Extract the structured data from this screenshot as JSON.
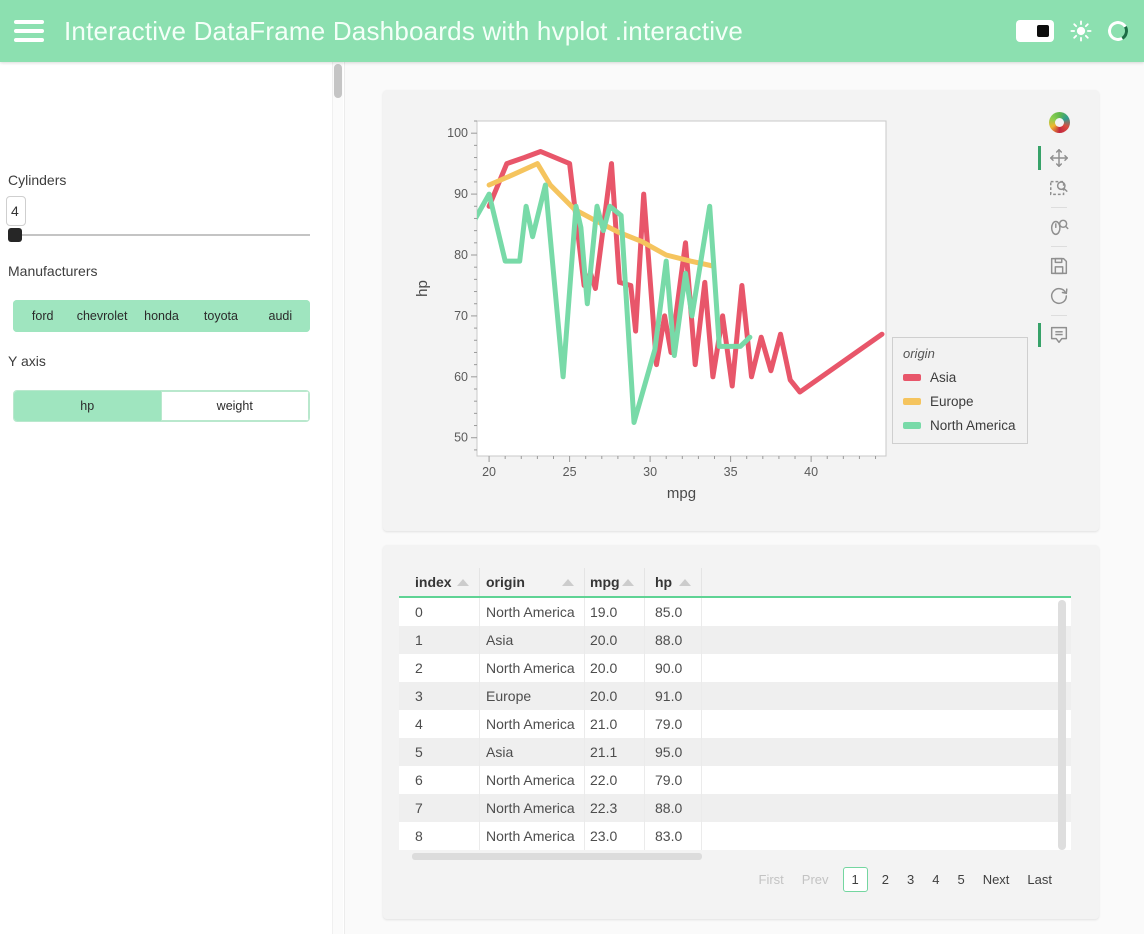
{
  "header": {
    "title": "Interactive DataFrame Dashboards with hvplot .interactive",
    "icons": [
      "menu-icon",
      "theme-toggle",
      "sun-icon",
      "busy-indicator"
    ]
  },
  "sidebar": {
    "cylinders_label": "Cylinders",
    "cylinders_value": "4",
    "manufacturers_label": "Manufacturers",
    "manufacturer_options": [
      "ford",
      "chevrolet",
      "honda",
      "toyota",
      "audi"
    ],
    "yaxis_label": "Y axis",
    "yaxis_options": [
      "hp",
      "weight"
    ],
    "yaxis_selected": "hp"
  },
  "chart_data": {
    "type": "line",
    "title": "",
    "xlabel": "mpg",
    "ylabel": "hp",
    "xlim": [
      19.25,
      44.65
    ],
    "ylim": [
      47,
      102
    ],
    "xticks": [
      20,
      25,
      30,
      35,
      40
    ],
    "yticks": [
      50,
      60,
      70,
      80,
      90,
      100
    ],
    "grid": false,
    "legend_title": "origin",
    "legend_position": "right",
    "series": [
      {
        "name": "Asia",
        "color": "#e8566a",
        "points": [
          [
            20.0,
            88
          ],
          [
            21.1,
            95
          ],
          [
            22.2,
            96
          ],
          [
            23.2,
            97
          ],
          [
            25.0,
            95
          ],
          [
            25.9,
            75
          ],
          [
            26.3,
            77
          ],
          [
            26.6,
            74.5
          ],
          [
            27.6,
            95
          ],
          [
            28.1,
            75.5
          ],
          [
            28.8,
            75
          ],
          [
            29.1,
            67.5
          ],
          [
            29.6,
            90
          ],
          [
            30.4,
            62
          ],
          [
            30.9,
            70
          ],
          [
            31.3,
            64
          ],
          [
            32.2,
            82
          ],
          [
            32.8,
            62
          ],
          [
            33.4,
            75.5
          ],
          [
            33.9,
            60
          ],
          [
            34.5,
            70
          ],
          [
            35.1,
            58.5
          ],
          [
            35.7,
            75
          ],
          [
            36.3,
            60
          ],
          [
            36.9,
            66.5
          ],
          [
            37.5,
            61
          ],
          [
            38.1,
            67
          ],
          [
            38.7,
            59.5
          ],
          [
            39.3,
            57.5
          ],
          [
            44.4,
            67
          ]
        ]
      },
      {
        "name": "Europe",
        "color": "#f5c45e",
        "points": [
          [
            20.0,
            91.5
          ],
          [
            21.5,
            93.2
          ],
          [
            23.0,
            95
          ],
          [
            23.8,
            91.5
          ],
          [
            25.3,
            87.5
          ],
          [
            26.5,
            85.8
          ],
          [
            28.0,
            83.8
          ],
          [
            29.5,
            82.2
          ],
          [
            31.0,
            80
          ],
          [
            32.5,
            79
          ],
          [
            33.9,
            78.2
          ]
        ]
      },
      {
        "name": "North America",
        "color": "#78daa8",
        "points": [
          [
            19.0,
            85.3
          ],
          [
            20.0,
            90
          ],
          [
            21.0,
            79
          ],
          [
            21.9,
            79
          ],
          [
            22.3,
            88
          ],
          [
            22.7,
            83
          ],
          [
            23.5,
            91.5
          ],
          [
            24.6,
            60
          ],
          [
            25.4,
            88
          ],
          [
            25.7,
            84.5
          ],
          [
            26.1,
            72
          ],
          [
            26.7,
            88
          ],
          [
            27.1,
            84
          ],
          [
            27.5,
            88
          ],
          [
            28.2,
            86.5
          ],
          [
            29.0,
            52.5
          ],
          [
            30.3,
            64.5
          ],
          [
            31.0,
            79
          ],
          [
            31.5,
            63.5
          ],
          [
            32.2,
            77
          ],
          [
            32.6,
            70
          ],
          [
            33.7,
            88
          ],
          [
            34.3,
            65
          ],
          [
            35.6,
            65
          ],
          [
            36.2,
            66.5
          ]
        ]
      }
    ]
  },
  "plot_toolbar": {
    "tools": [
      {
        "name": "pan",
        "active": true
      },
      {
        "name": "box-zoom",
        "active": false
      },
      {
        "name": "wheel-zoom",
        "active": false
      },
      {
        "name": "save",
        "active": false
      },
      {
        "name": "reset",
        "active": false
      },
      {
        "name": "hover",
        "active": true
      }
    ]
  },
  "table": {
    "columns": [
      "index",
      "origin",
      "mpg",
      "hp"
    ],
    "rows": [
      [
        "0",
        "North America",
        "19.0",
        "85.0"
      ],
      [
        "1",
        "Asia",
        "20.0",
        "88.0"
      ],
      [
        "2",
        "North America",
        "20.0",
        "90.0"
      ],
      [
        "3",
        "Europe",
        "20.0",
        "91.0"
      ],
      [
        "4",
        "North America",
        "21.0",
        "79.0"
      ],
      [
        "5",
        "Asia",
        "21.1",
        "95.0"
      ],
      [
        "6",
        "North America",
        "22.0",
        "79.0"
      ],
      [
        "7",
        "North America",
        "22.3",
        "88.0"
      ],
      [
        "8",
        "North America",
        "23.0",
        "83.0"
      ]
    ],
    "pagination": {
      "first": "First",
      "prev": "Prev",
      "pages": [
        "1",
        "2",
        "3",
        "4",
        "5"
      ],
      "current": "1",
      "next": "Next",
      "last": "Last"
    }
  },
  "colors": {
    "header_bg": "#8ce0b0",
    "widget_green": "#9fe5bf",
    "accent_underline": "#5fd394",
    "toolbar_active": "#37a269"
  }
}
